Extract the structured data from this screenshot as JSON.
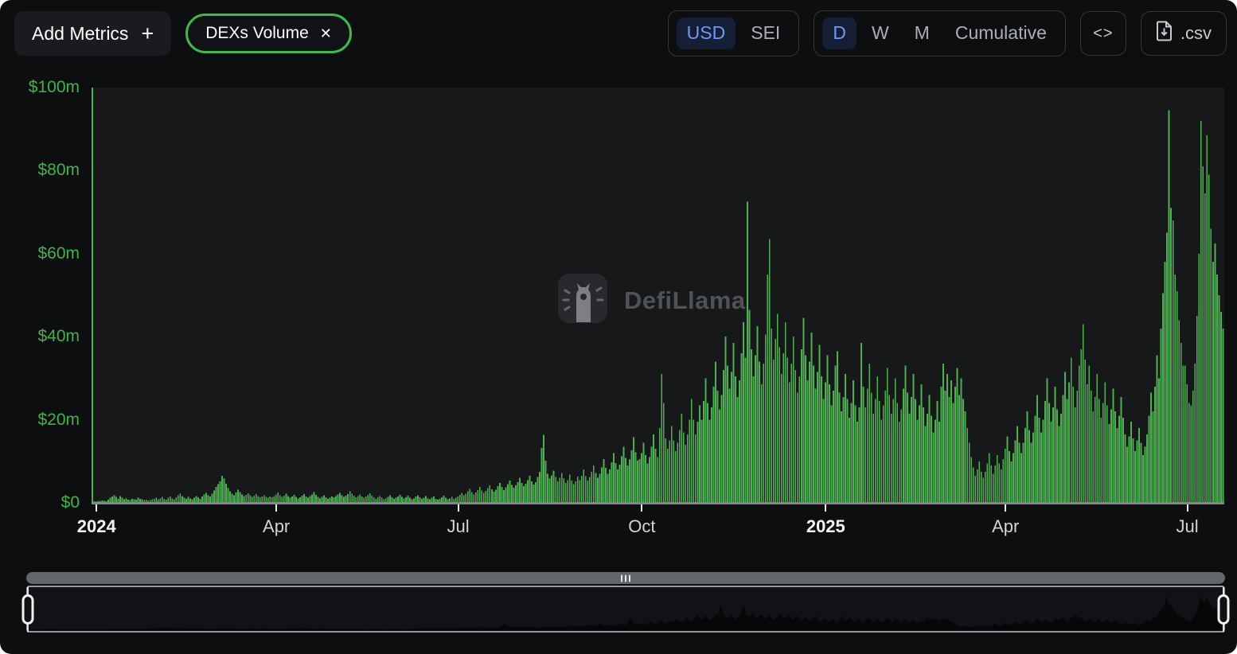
{
  "toolbar": {
    "add_metrics": {
      "label": "Add Metrics",
      "plus": "+"
    },
    "metric_pill": {
      "label": "DEXs Volume",
      "close": "✕"
    },
    "currency_toggle": {
      "options": [
        "USD",
        "SEI"
      ],
      "selected": "USD"
    },
    "interval_toggle": {
      "options": [
        "D",
        "W",
        "M",
        "Cumulative"
      ],
      "selected": "D"
    },
    "embed_button": {
      "label": "<>"
    },
    "csv_button": {
      "label": ".csv"
    }
  },
  "watermark": {
    "text": "DefiLlama"
  },
  "colors": {
    "bar": "#4caf50",
    "axis_green": "#42b349",
    "pill_border": "#3eb94a",
    "selected_blue": "#6b9bf2",
    "background": "#0d0e10",
    "plot_background": "#17181a"
  },
  "chart_data": {
    "type": "bar",
    "metric": "DEXs Volume",
    "currency": "USD",
    "interval": "daily",
    "unit": "USD millions",
    "x_start": "2024-01-01",
    "x_end": "2025-07-20",
    "ylim": [
      0,
      100
    ],
    "y_ticks": [
      "$0",
      "$20m",
      "$40m",
      "$60m",
      "$80m",
      "$100m"
    ],
    "x_ticks": [
      {
        "label": "2024",
        "day": 2,
        "bold": true
      },
      {
        "label": "Apr",
        "day": 92,
        "bold": false
      },
      {
        "label": "Jul",
        "day": 183,
        "bold": false
      },
      {
        "label": "Oct",
        "day": 275,
        "bold": false
      },
      {
        "label": "2025",
        "day": 367,
        "bold": true
      },
      {
        "label": "Apr",
        "day": 457,
        "bold": false
      },
      {
        "label": "Jul",
        "day": 548,
        "bold": false
      }
    ],
    "values": [
      100,
      0.4,
      0.3,
      0.5,
      0.4,
      0.6,
      0.5,
      0.4,
      0.8,
      1.2,
      1.5,
      1.8,
      1.4,
      1.0,
      1.6,
      1.2,
      0.9,
      1.1,
      0.8,
      0.7,
      1.0,
      0.9,
      0.8,
      1.2,
      1.0,
      0.9,
      0.7,
      0.8,
      0.6,
      0.7,
      0.9,
      1.0,
      1.2,
      0.9,
      1.1,
      1.4,
      1.0,
      0.8,
      1.2,
      1.5,
      1.1,
      0.9,
      1.3,
      1.8,
      2.2,
      1.6,
      1.2,
      1.0,
      1.4,
      1.1,
      0.9,
      1.2,
      1.6,
      1.3,
      1.0,
      1.5,
      2.0,
      2.4,
      1.8,
      1.5,
      2.2,
      3.0,
      3.8,
      4.5,
      5.2,
      6.5,
      5.8,
      4.6,
      3.5,
      2.8,
      2.2,
      1.8,
      2.5,
      3.2,
      2.6,
      2.0,
      1.6,
      1.9,
      2.3,
      1.8,
      1.4,
      1.7,
      2.1,
      1.6,
      1.3,
      1.5,
      1.8,
      1.4,
      1.2,
      1.5,
      1.3,
      1.6,
      2.0,
      2.5,
      1.8,
      1.4,
      1.7,
      2.2,
      1.6,
      1.2,
      1.5,
      1.9,
      1.4,
      1.1,
      1.3,
      1.7,
      2.1,
      1.5,
      1.2,
      1.6,
      2.0,
      2.6,
      1.9,
      1.4,
      1.1,
      1.4,
      1.8,
      1.3,
      1.0,
      1.2,
      1.5,
      1.3,
      1.6,
      2.0,
      2.4,
      1.8,
      1.4,
      1.7,
      2.1,
      2.8,
      2.2,
      1.7,
      1.3,
      1.6,
      2.0,
      1.5,
      1.2,
      1.5,
      1.9,
      2.3,
      1.7,
      1.3,
      1.0,
      1.3,
      1.6,
      1.2,
      0.9,
      1.1,
      1.4,
      1.8,
      1.3,
      1.0,
      1.2,
      1.5,
      1.9,
      1.4,
      1.1,
      1.3,
      1.7,
      1.2,
      0.9,
      1.1,
      1.5,
      1.8,
      1.3,
      1.0,
      1.2,
      1.6,
      1.1,
      0.9,
      1.2,
      1.5,
      1.0,
      0.8,
      1.0,
      1.3,
      1.7,
      1.2,
      0.9,
      1.1,
      1.4,
      1.0,
      1.2,
      1.5,
      1.9,
      2.4,
      1.8,
      2.2,
      2.8,
      3.4,
      2.6,
      2.0,
      2.5,
      3.1,
      3.8,
      3.0,
      2.4,
      2.9,
      3.5,
      4.2,
      3.3,
      2.7,
      3.2,
      4.0,
      4.8,
      3.8,
      3.1,
      3.7,
      4.5,
      5.4,
      4.3,
      3.6,
      4.2,
      5.0,
      6.0,
      4.8,
      4.0,
      4.6,
      5.5,
      6.5,
      5.2,
      4.4,
      5.0,
      6.2,
      7.5,
      13.2,
      16.4,
      10.2,
      7.0,
      5.8,
      6.6,
      7.8,
      6.2,
      5.2,
      6.0,
      7.2,
      5.8,
      4.8,
      5.5,
      6.8,
      5.4,
      4.5,
      5.2,
      6.3,
      5.5,
      6.5,
      8.0,
      6.4,
      5.4,
      6.2,
      7.5,
      9.0,
      7.2,
      6.0,
      7.0,
      8.5,
      10.5,
      8.4,
      7.0,
      8.0,
      9.8,
      12.0,
      9.6,
      8.0,
      9.2,
      11.2,
      13.5,
      10.8,
      9.0,
      10.4,
      12.6,
      15.8,
      12.2,
      10.2,
      10.5,
      12.0,
      14.5,
      11.5,
      9.5,
      11.0,
      13.5,
      16.5,
      13.0,
      11.0,
      18.0,
      31.0,
      24.0,
      15.5,
      13.0,
      15.0,
      18.5,
      15.0,
      12.5,
      14.5,
      17.5,
      21.5,
      17.0,
      14.0,
      16.5,
      20.0,
      25.0,
      20.0,
      16.5,
      19.5,
      23.5,
      20.0,
      24.5,
      30.0,
      24.0,
      20.0,
      23.0,
      28.0,
      34.0,
      27.0,
      22.5,
      26.0,
      32.0,
      40.0,
      33.0,
      27.5,
      31.5,
      38.5,
      30.5,
      25.5,
      29.5,
      36.0,
      43.5,
      35.0,
      72.5,
      46.5,
      37.0,
      30.5,
      35.5,
      42.5,
      34.0,
      28.5,
      33.5,
      40.5,
      55.0,
      63.5,
      42.0,
      34.5,
      39.5,
      45.5,
      37.5,
      31.0,
      36.0,
      43.5,
      35.0,
      29.0,
      33.5,
      40.0,
      32.0,
      26.5,
      30.5,
      37.0,
      44.5,
      35.5,
      29.5,
      34.0,
      41.0,
      33.0,
      27.5,
      31.5,
      38.0,
      30.5,
      25.0,
      29.0,
      35.5,
      28.5,
      23.5,
      27.0,
      33.0,
      36.5,
      26.5,
      22.0,
      25.5,
      31.0,
      25.0,
      20.5,
      24.0,
      29.5,
      23.5,
      19.5,
      23.0,
      38.5,
      28.0,
      23.0,
      27.5,
      33.5,
      26.5,
      21.5,
      25.0,
      30.5,
      24.5,
      20.0,
      23.5,
      27.0,
      32.5,
      26.0,
      21.5,
      25.0,
      30.0,
      24.0,
      19.5,
      22.5,
      27.5,
      33.0,
      26.5,
      21.5,
      25.5,
      31.0,
      25.0,
      20.0,
      23.5,
      28.5,
      23.0,
      18.5,
      21.5,
      26.0,
      21.0,
      17.0,
      20.0,
      24.5,
      19.5,
      28.0,
      33.5,
      27.0,
      31.0,
      25.5,
      29.5,
      24.0,
      28.0,
      32.5,
      26.0,
      30.0,
      25.0,
      22.0,
      18.0,
      14.5,
      11.0,
      8.5,
      6.5,
      8.0,
      10.0,
      7.5,
      6.0,
      7.5,
      9.5,
      12.0,
      9.0,
      7.0,
      9.0,
      11.5,
      9.5,
      8.0,
      10.5,
      13.0,
      16.0,
      12.5,
      10.0,
      12.0,
      15.0,
      18.5,
      14.5,
      12.0,
      14.5,
      18.0,
      22.0,
      17.5,
      14.5,
      17.0,
      21.0,
      26.0,
      20.5,
      17.0,
      20.0,
      24.5,
      30.0,
      24.0,
      19.5,
      23.0,
      28.0,
      22.5,
      18.5,
      21.5,
      26.0,
      31.5,
      25.0,
      29.0,
      35.0,
      28.0,
      23.0,
      27.0,
      33.0,
      37.0,
      43.0,
      34.5,
      28.5,
      33.0,
      27.0,
      22.0,
      25.5,
      31.0,
      25.0,
      20.5,
      24.0,
      29.0,
      23.5,
      19.0,
      22.5,
      27.5,
      22.0,
      18.0,
      21.0,
      25.5,
      20.5,
      16.5,
      13.5,
      16.0,
      19.5,
      15.5,
      12.5,
      15.0,
      18.0,
      14.5,
      11.5,
      13.5,
      16.5,
      21.0,
      26.5,
      22.0,
      28.0,
      35.5,
      30.0,
      42.0,
      50.5,
      58.0,
      65.0,
      94.5,
      71.0,
      68.0,
      55.0,
      51.0,
      44.0,
      38.5,
      33.0,
      33.0,
      28.5,
      24.0,
      23.5,
      27.0,
      33.5,
      45.0,
      60.0,
      92.0,
      81.0,
      74.5,
      88.5,
      79.0,
      66.0,
      58.0,
      62.5,
      55.0,
      50.0,
      46.0,
      42.0
    ]
  }
}
